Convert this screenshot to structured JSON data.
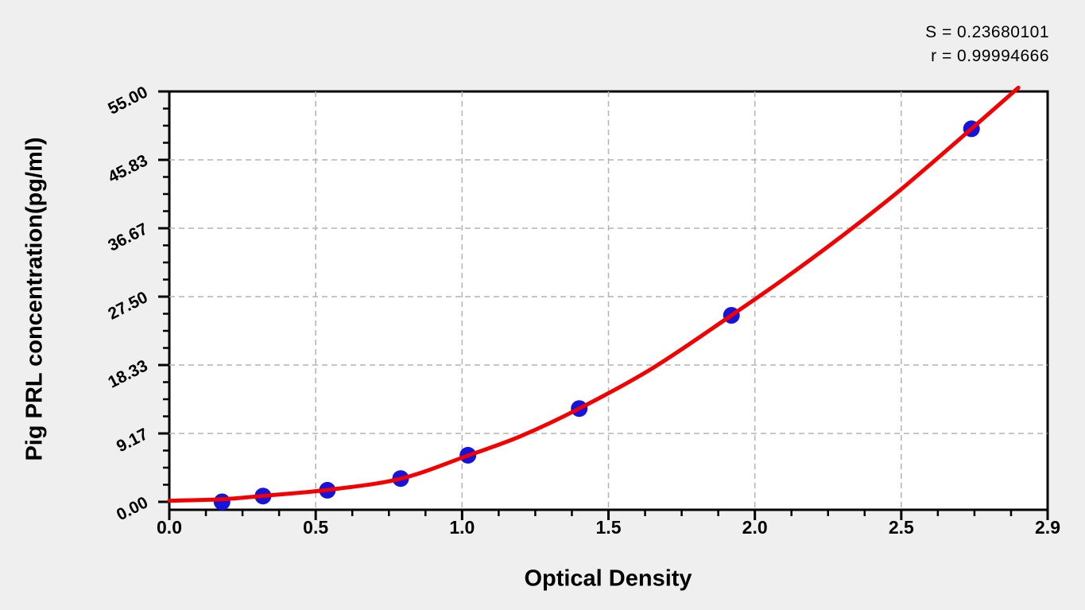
{
  "chart_data": {
    "type": "scatter",
    "title": "",
    "xlabel": "Optical Density",
    "ylabel": "Pig PRL concentration(pg/ml)",
    "xlim": [
      0.0,
      2.9
    ],
    "ylim": [
      0.0,
      55.0
    ],
    "x_tick_labels": [
      "0.0",
      "0.5",
      "1.0",
      "1.5",
      "2.0",
      "2.5",
      "2.9"
    ],
    "y_tick_labels": [
      "55.00",
      "45.83",
      "36.67",
      "27.50",
      "18.33",
      "9.17",
      "0.00"
    ],
    "grid": "dashed-at-major-ticks",
    "legend_position": "none",
    "series": [
      {
        "name": "standard-points",
        "style": "scatter",
        "points": [
          [
            0.18,
            0.0
          ],
          [
            0.32,
            0.78
          ],
          [
            0.54,
            1.56
          ],
          [
            0.79,
            3.12
          ],
          [
            1.02,
            6.25
          ],
          [
            1.4,
            12.5
          ],
          [
            1.92,
            25.0
          ],
          [
            2.74,
            50.0
          ]
        ]
      },
      {
        "name": "fit-curve",
        "style": "line",
        "points": [
          [
            0.0,
            0.15
          ],
          [
            0.18,
            0.35
          ],
          [
            0.32,
            0.8
          ],
          [
            0.54,
            1.6
          ],
          [
            0.79,
            3.1
          ],
          [
            1.02,
            6.2
          ],
          [
            1.2,
            8.8
          ],
          [
            1.4,
            12.5
          ],
          [
            1.65,
            17.9
          ],
          [
            1.92,
            25.0
          ],
          [
            2.1,
            29.9
          ],
          [
            2.3,
            35.7
          ],
          [
            2.5,
            41.9
          ],
          [
            2.74,
            50.0
          ],
          [
            2.9,
            55.5
          ]
        ]
      }
    ],
    "stats": {
      "s": "S = 0.23680101",
      "r": "r = 0.99994666"
    }
  },
  "style": {
    "page_bg": "#efefef",
    "plot_bg": "#ffffff",
    "frame_color": "#000000",
    "grid_color": "#b3b3b3",
    "curve_color": "#f40000",
    "point_color": "#1414dd",
    "text_color": "#000000"
  }
}
